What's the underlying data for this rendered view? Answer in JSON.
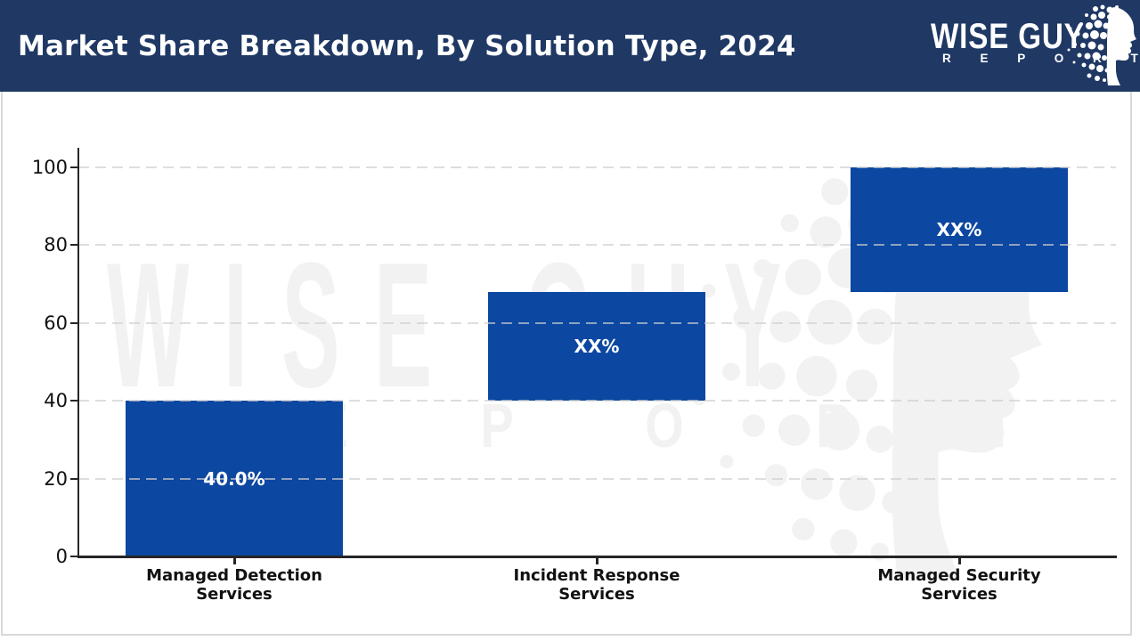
{
  "header": {
    "title": "Market Share Breakdown, By Solution Type, 2024",
    "logo": {
      "name": "WISE GUY",
      "subtitle": "R E P O R T S"
    }
  },
  "watermark": {
    "line1": "WISE GUY",
    "line2": "R E P O R T S"
  },
  "chart_data": {
    "type": "bar",
    "variant": "segmented range bars (stacked market-share breakdown, grid drawn above bars)",
    "title": "Market Share Breakdown, By Solution Type, 2024",
    "categories": [
      "Managed Detection Services",
      "Incident Response Services",
      "Managed Security Services"
    ],
    "xtick_labels": [
      "Managed Detection\nServices",
      "Incident Response\nServices",
      "Managed Security\nServices"
    ],
    "segments": [
      {
        "category": "Managed Detection Services",
        "from": 0,
        "to": 40,
        "label": "40.0%"
      },
      {
        "category": "Incident Response Services",
        "from": 40,
        "to": 68,
        "label": "XX%"
      },
      {
        "category": "Managed Security Services",
        "from": 68,
        "to": 100,
        "label": "XX%"
      }
    ],
    "ylim": [
      0,
      100
    ],
    "yticks": [
      0,
      20,
      40,
      60,
      80,
      100
    ],
    "xlabel": "",
    "ylabel": "",
    "grid": "horizontal dashed",
    "legend": "none",
    "colors": {
      "bar": "#0c47a1",
      "bar_label": "#ffffff",
      "header_bg": "#1f3864",
      "axis": "#262626",
      "gridline": "#d9d9d9",
      "watermark": "#f2f2f2"
    }
  }
}
